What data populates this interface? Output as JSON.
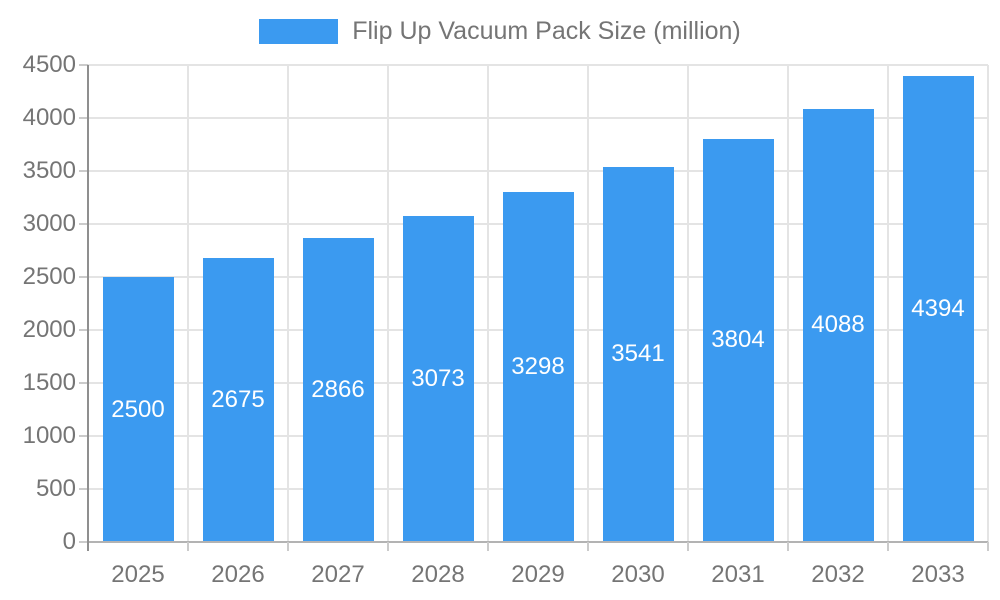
{
  "chart_data": {
    "type": "bar",
    "title": "Flip Up Vacuum Pack Size (million)",
    "legend": {
      "label": "Flip Up Vacuum Pack Size (million)",
      "position": "top-center",
      "swatch": "filled-rectangle"
    },
    "categories": [
      "2025",
      "2026",
      "2027",
      "2028",
      "2029",
      "2030",
      "2031",
      "2032",
      "2033"
    ],
    "series": [
      {
        "name": "Flip Up Vacuum Pack Size (million)",
        "values": [
          2500,
          2675,
          2866,
          3073,
          3298,
          3541,
          3804,
          4088,
          4394
        ]
      }
    ],
    "bar_value_labels": [
      "2500",
      "2675",
      "2866",
      "3073",
      "3298",
      "3541",
      "3804",
      "4088",
      "4394"
    ],
    "bar_labels_inside": true,
    "xlabel": "",
    "ylabel": "",
    "ylim": [
      0,
      4500
    ],
    "ytick_step": 500,
    "ytick_labels": [
      "0",
      "500",
      "1000",
      "1500",
      "2000",
      "2500",
      "3000",
      "3500",
      "4000",
      "4500"
    ],
    "grid": true,
    "colors": {
      "bar_fill": "#3b9af0",
      "bar_value_text": "#ffffff",
      "axis_label_text": "#757575",
      "legend_text": "#757575",
      "gridline": "#e4e4e4",
      "y_axis_line": "#8f8f8f",
      "baseline": "#b3b3b3",
      "tick_mark": "#cbcbcb",
      "background": "#ffffff"
    }
  }
}
